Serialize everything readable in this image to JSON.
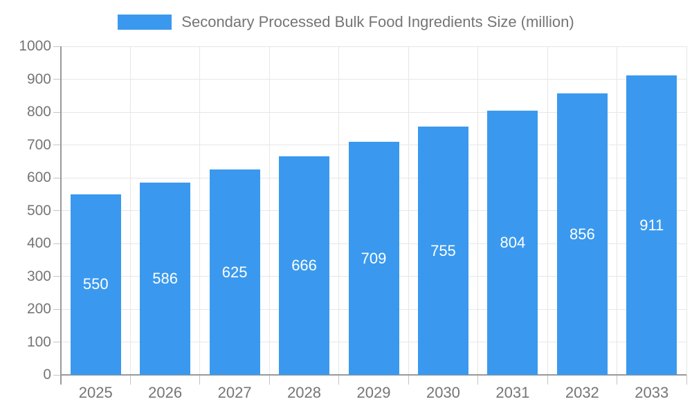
{
  "legend": {
    "label": "Secondary Processed Bulk Food Ingredients Size (million)"
  },
  "chart_data": {
    "type": "bar",
    "title": "Secondary Processed Bulk Food Ingredients Size (million)",
    "categories": [
      "2025",
      "2026",
      "2027",
      "2028",
      "2029",
      "2030",
      "2031",
      "2032",
      "2033"
    ],
    "values": [
      550,
      586,
      625,
      666,
      709,
      755,
      804,
      856,
      911
    ],
    "xlabel": "",
    "ylabel": "",
    "ylim": [
      0,
      1000
    ],
    "y_ticks": [
      0,
      100,
      200,
      300,
      400,
      500,
      600,
      700,
      800,
      900,
      1000
    ],
    "grid": true,
    "legend_position": "top",
    "colors": {
      "bar": "#3A99EE",
      "axis": "#999999",
      "grid": "#e6e6e6",
      "tick": "#c4c4c4",
      "text": "#757575",
      "bar_label": "#ffffff",
      "background": "#ffffff"
    }
  }
}
